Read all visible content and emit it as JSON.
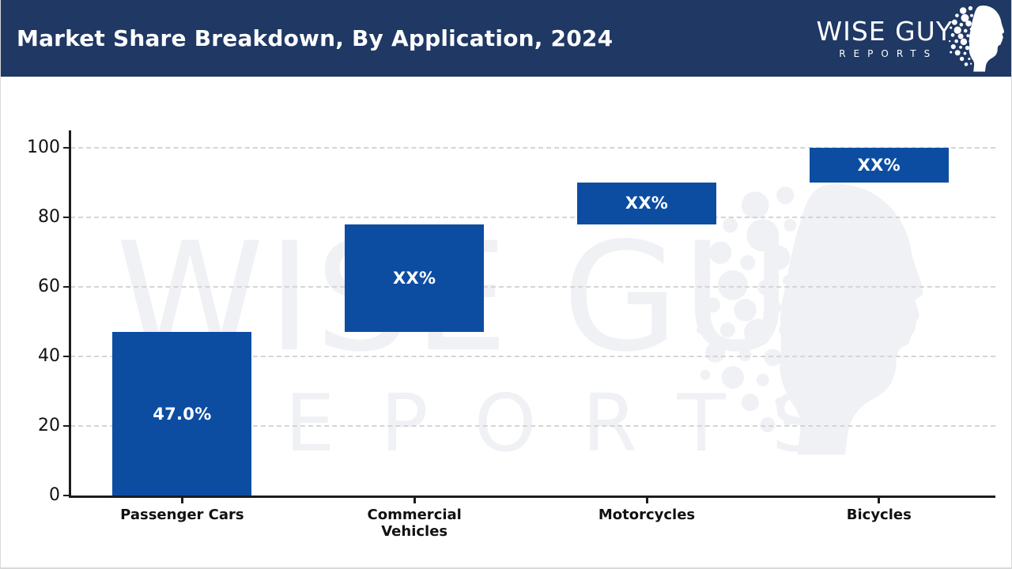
{
  "header": {
    "title": "Market Share Breakdown, By Application, 2024",
    "bg_color": "#1f3864",
    "logo": {
      "line1": "WISE GUY",
      "line2": "REPORTS"
    }
  },
  "watermark": {
    "line1": "WISE GUY",
    "line2": "REPORTS"
  },
  "chart_data": {
    "type": "bar",
    "subtype": "waterfall",
    "title": "Market Share Breakdown, By Application, 2024",
    "categories": [
      "Passenger Cars",
      "Commercial\nVehicles",
      "Motorcycles",
      "Bicycles"
    ],
    "segments": [
      {
        "category": "Passenger Cars",
        "start": 0,
        "end": 47,
        "value": 47.0,
        "label": "47.0%"
      },
      {
        "category": "Commercial Vehicles",
        "start": 47,
        "end": 78,
        "value": 31.0,
        "label": "XX%"
      },
      {
        "category": "Motorcycles",
        "start": 78,
        "end": 90,
        "value": 12.0,
        "label": "XX%"
      },
      {
        "category": "Bicycles",
        "start": 90,
        "end": 100,
        "value": 10.0,
        "label": "XX%"
      }
    ],
    "ylabel": "",
    "xlabel": "",
    "yticks": [
      0,
      20,
      40,
      60,
      80,
      100
    ],
    "ylim": [
      0,
      105
    ],
    "grid": "horizontal-dashed",
    "legend": "none",
    "bar_color": "#0c4da2",
    "bar_label_color": "#ffffff",
    "grid_color": "#d5d5d5",
    "axis_color": "#1c1c1c",
    "tick_label_color": "#111111",
    "watermark_color": "#f0f1f4"
  }
}
